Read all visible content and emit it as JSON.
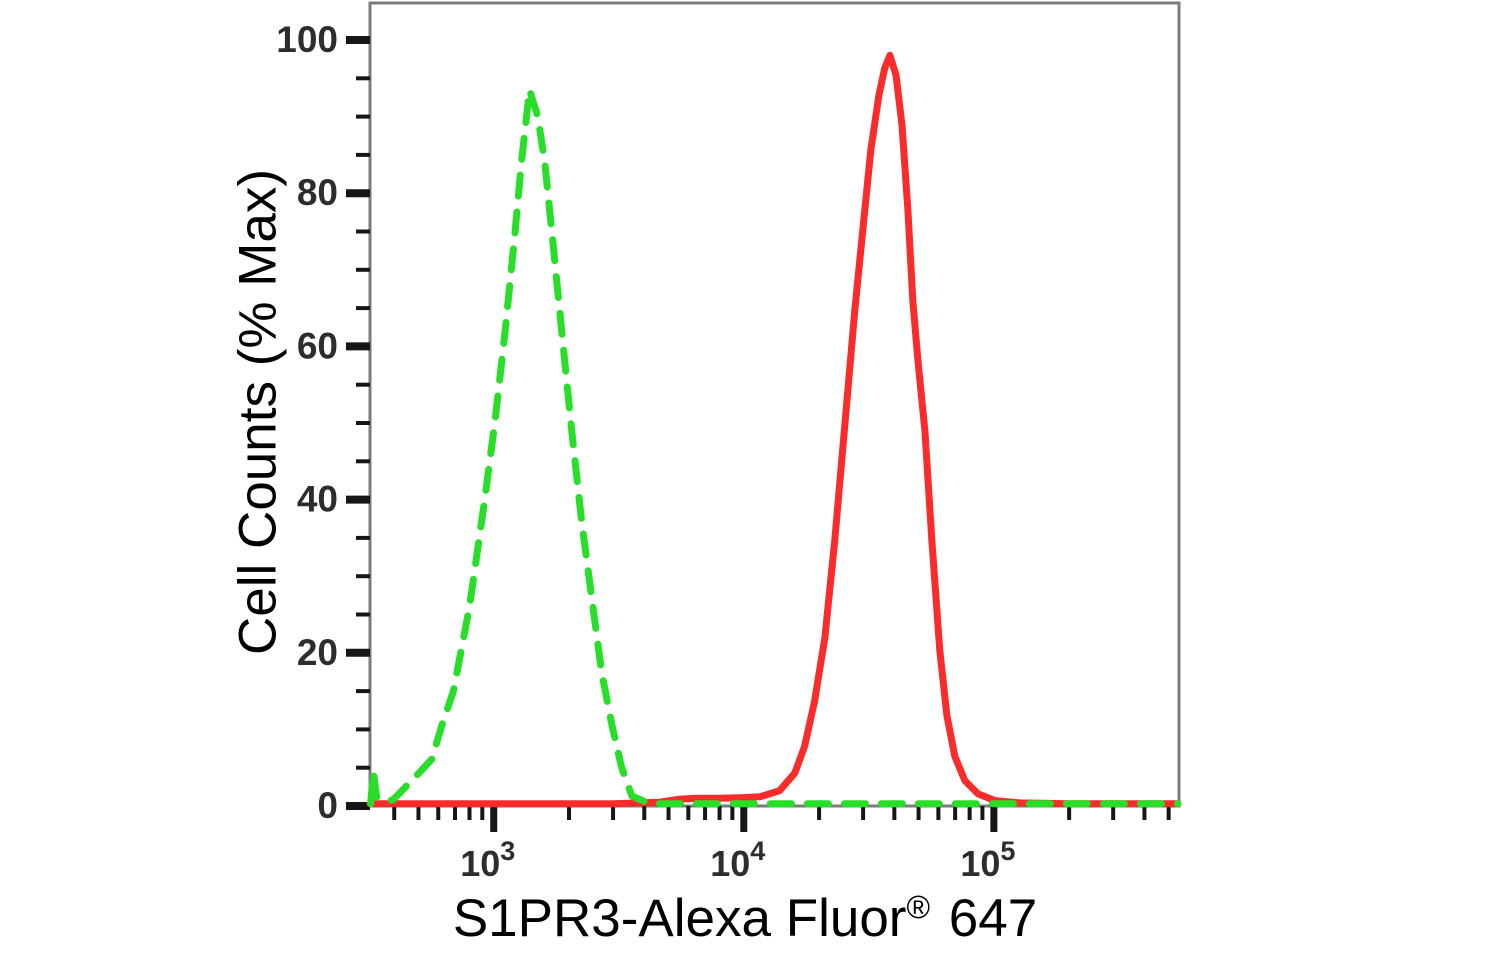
{
  "figure": {
    "background": "#ffffff"
  },
  "chart_data": {
    "type": "line",
    "subtype": "flow-cytometry-overlay-histogram",
    "title": "",
    "xlabel_main": "S1PR3-Alexa Fluor",
    "xlabel_sup": "®",
    "xlabel_suffix": " 647",
    "ylabel": "Cell Counts (% Max)",
    "x_scale": "log10",
    "xlim": [
      320,
      550000
    ],
    "ylim": [
      0,
      100
    ],
    "x_major_ticks": [
      1000,
      10000,
      100000
    ],
    "x_major_tick_base": "10",
    "x_major_tick_exponents": [
      "3",
      "4",
      "5"
    ],
    "y_major_ticks": [
      0,
      20,
      40,
      60,
      80,
      100
    ],
    "y_minor_tick_step": 5,
    "grid": false,
    "legend": "none",
    "frame": true,
    "colors": {
      "frame": "#7b7b7b",
      "ticks": "#161616",
      "tick_labels": "#2d2d2d",
      "titles": "#000000",
      "green_series": "#28de28",
      "red_series": "#f92c2c"
    },
    "series": [
      {
        "name": "red-solid-histogram",
        "color": "#f92c2c",
        "line_style": "solid",
        "line_width": 7,
        "points": [
          [
            320,
            0.3
          ],
          [
            1000,
            0.3
          ],
          [
            2000,
            0.3
          ],
          [
            3000,
            0.3
          ],
          [
            4600,
            0.5
          ],
          [
            5550,
            0.9
          ],
          [
            6500,
            1.0
          ],
          [
            8000,
            1.0
          ],
          [
            10000,
            1.1
          ],
          [
            11600,
            1.2
          ],
          [
            13900,
            2.0
          ],
          [
            16000,
            4.3
          ],
          [
            17500,
            7.8
          ],
          [
            19200,
            13.7
          ],
          [
            21100,
            22.0
          ],
          [
            23100,
            34.6
          ],
          [
            25400,
            50.0
          ],
          [
            27800,
            64.7
          ],
          [
            29900,
            75.2
          ],
          [
            32200,
            85.6
          ],
          [
            34700,
            92.8
          ],
          [
            36600,
            96.3
          ],
          [
            38400,
            98.0
          ],
          [
            40600,
            95.4
          ],
          [
            42900,
            88.9
          ],
          [
            45300,
            77.8
          ],
          [
            47400,
            66.0
          ],
          [
            49700,
            58.2
          ],
          [
            53000,
            49.0
          ],
          [
            56500,
            34.6
          ],
          [
            60800,
            20.3
          ],
          [
            64900,
            11.8
          ],
          [
            69800,
            6.5
          ],
          [
            76600,
            3.3
          ],
          [
            86300,
            1.6
          ],
          [
            101000,
            0.7
          ],
          [
            127000,
            0.4
          ],
          [
            200000,
            0.3
          ],
          [
            545000,
            0.3
          ]
        ]
      },
      {
        "name": "green-dashed-histogram",
        "color": "#28de28",
        "line_style": "dashed",
        "line_width": 7,
        "points": [
          [
            322,
            0.3
          ],
          [
            330,
            4.5
          ],
          [
            340,
            1.2
          ],
          [
            360,
            0.6
          ],
          [
            395,
            0.8
          ],
          [
            470,
            3.3
          ],
          [
            565,
            6.1
          ],
          [
            620,
            10.5
          ],
          [
            690,
            15.0
          ],
          [
            800,
            26.0
          ],
          [
            920,
            40.0
          ],
          [
            1010,
            50.0
          ],
          [
            1110,
            62.0
          ],
          [
            1210,
            74.0
          ],
          [
            1290,
            84.0
          ],
          [
            1390,
            93.5
          ],
          [
            1500,
            90.0
          ],
          [
            1600,
            84.0
          ],
          [
            1720,
            74.0
          ],
          [
            1870,
            62.0
          ],
          [
            2050,
            49.0
          ],
          [
            2250,
            37.0
          ],
          [
            2470,
            27.0
          ],
          [
            2700,
            17.5
          ],
          [
            2970,
            10.5
          ],
          [
            3250,
            5.0
          ],
          [
            3570,
            1.3
          ],
          [
            4200,
            0.3
          ],
          [
            10000,
            0.3
          ],
          [
            50000,
            0.3
          ],
          [
            200000,
            0.3
          ],
          [
            545000,
            0.3
          ]
        ]
      }
    ]
  }
}
